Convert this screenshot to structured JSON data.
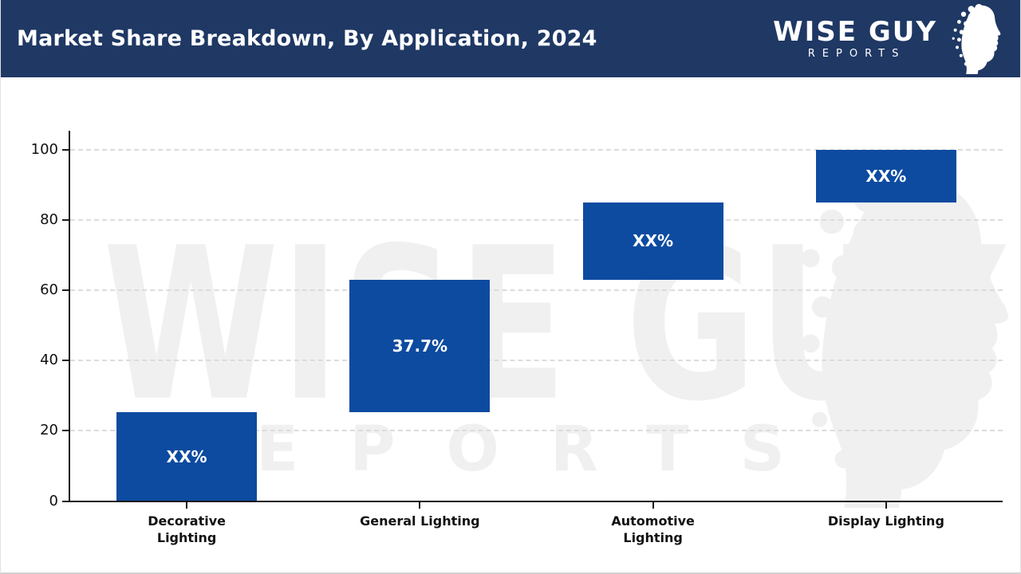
{
  "header": {
    "title": "Market Share Breakdown, By Application, 2024",
    "logo": {
      "wordmark": "WISE GUY",
      "subtext": "REPORTS"
    }
  },
  "watermark": {
    "line1": "WISE GUY",
    "line2": "REPORTS"
  },
  "chart_data": {
    "type": "bar",
    "subtype": "floating-waterfall",
    "title": "Market Share Breakdown, By Application, 2024",
    "categories": [
      "Decorative\nLighting",
      "General Lighting",
      "Automotive\nLighting",
      "Display Lighting"
    ],
    "segments": [
      {
        "category": "Decorative Lighting",
        "start": 0,
        "end": 25.2,
        "label": "XX%"
      },
      {
        "category": "General Lighting",
        "start": 25.2,
        "end": 62.9,
        "label": "37.7%"
      },
      {
        "category": "Automotive Lighting",
        "start": 62.9,
        "end": 85.0,
        "label": "XX%"
      },
      {
        "category": "Display Lighting",
        "start": 85.0,
        "end": 100.0,
        "label": "XX%"
      }
    ],
    "yticks": [
      0,
      20,
      40,
      60,
      80,
      100
    ],
    "ylim": [
      0,
      105
    ],
    "xlabel": "",
    "ylabel": "",
    "grid": "horizontal-dashed",
    "legend": "none",
    "colors": {
      "bar": "#0d4ba0",
      "header_bg": "#1f3864",
      "value_label": "#ffffff",
      "axis": "#1a1a1a",
      "gridline": "#dcdcdc",
      "watermark": "#f0f0f0"
    }
  }
}
